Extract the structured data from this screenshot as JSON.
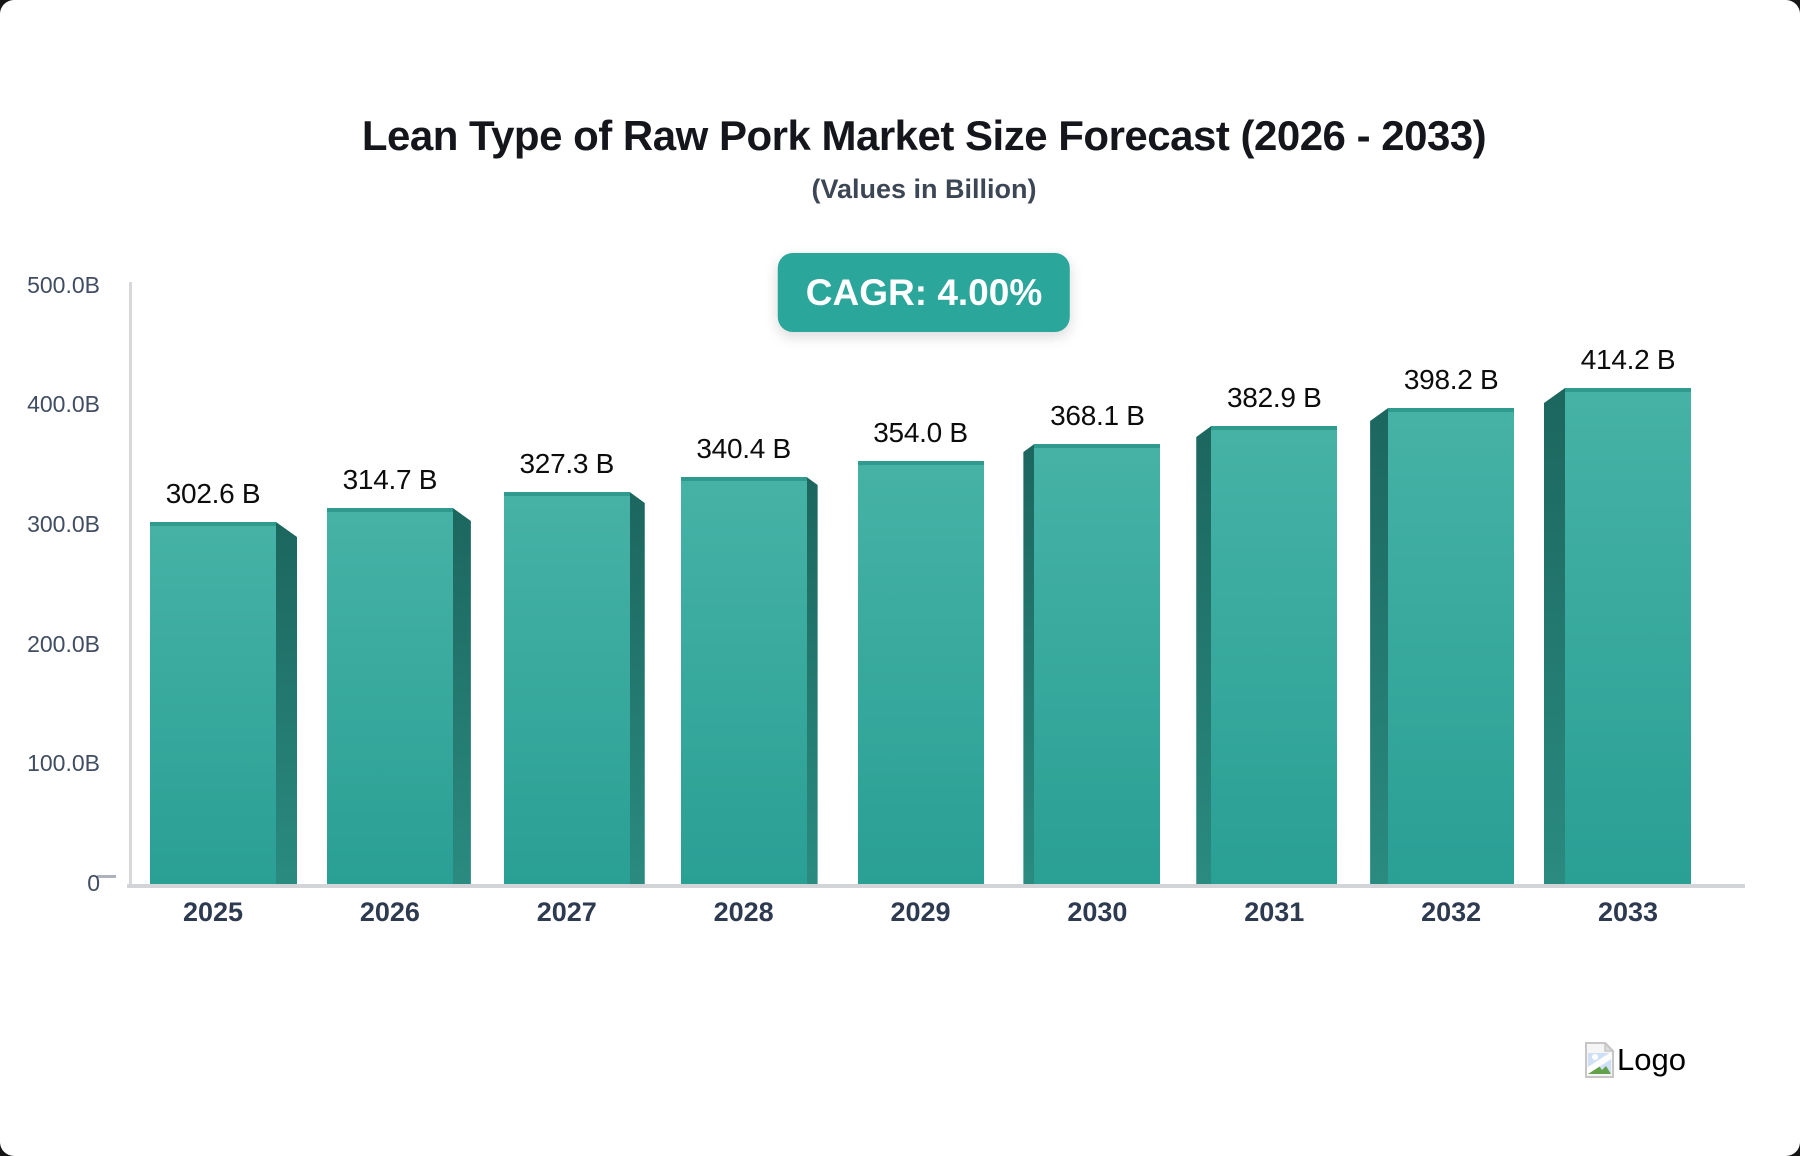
{
  "header": {
    "title": "Lean Type of Raw Pork Market Size Forecast (2026 - 2033)",
    "subtitle": "(Values in Billion)",
    "cagr_label": "CAGR: 4.00%"
  },
  "footer": {
    "logo_text": "Logo",
    "logo_icon": "broken-image-icon"
  },
  "colors": {
    "badge_bg": "#2aa69a",
    "badge_text": "#ffffff",
    "bar_face_top": "#46b2a6",
    "bar_face_bottom": "#2a9f94",
    "bar_cap": "#2f9b8f",
    "bar_side_top": "#1c665e",
    "bar_side_bottom": "#2a8b80",
    "axis_line": "#d7d8dc",
    "tick_label": "#404d62",
    "category_label": "#2d3a50",
    "value_label": "#0c0c0c"
  },
  "chart_data": {
    "type": "bar",
    "style": "3d-perspective-bars",
    "title": "Lean Type of Raw Pork Market Size Forecast (2026 - 2033)",
    "subtitle": "(Values in Billion)",
    "annotation": "CAGR: 4.00%",
    "categories": [
      "2025",
      "2026",
      "2027",
      "2028",
      "2029",
      "2030",
      "2031",
      "2032",
      "2033"
    ],
    "values": [
      302.6,
      314.7,
      327.3,
      340.4,
      354.0,
      368.1,
      382.9,
      398.2,
      414.2
    ],
    "value_labels": [
      "302.6 B",
      "314.7 B",
      "327.3 B",
      "340.4 B",
      "354.0 B",
      "368.1 B",
      "382.9 B",
      "398.2 B",
      "414.2 B"
    ],
    "unit": "Billion",
    "ylim": [
      0,
      500
    ],
    "y_ticks": [
      {
        "value": 500,
        "label": "500.0B"
      },
      {
        "value": 400,
        "label": "400.0B"
      },
      {
        "value": 300,
        "label": "300.0B"
      },
      {
        "value": 200,
        "label": "200.0B"
      },
      {
        "value": 100,
        "label": "100.0B"
      },
      {
        "value": 0,
        "label": "0"
      }
    ],
    "grid": "off",
    "legend": "none"
  }
}
